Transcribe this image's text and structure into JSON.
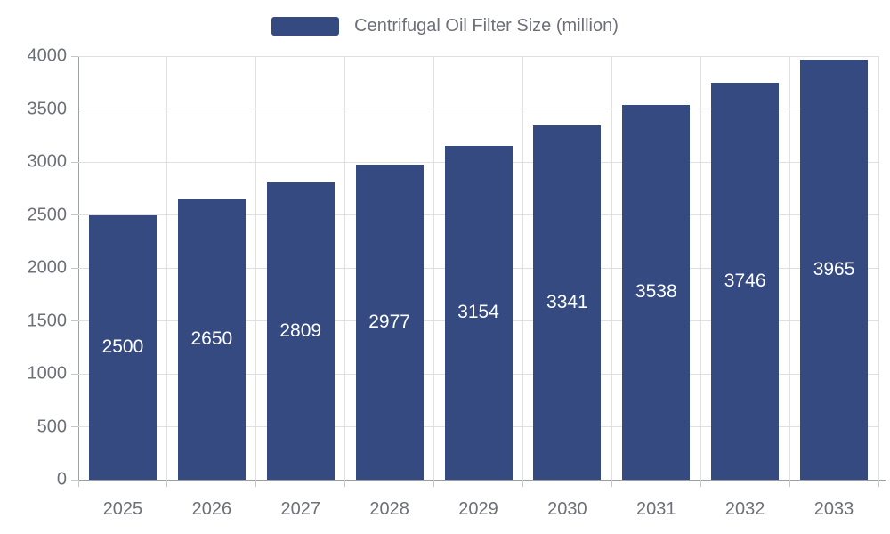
{
  "chart_data": {
    "type": "bar",
    "title": "Centrifugal Oil Filter Size (million)",
    "legend": [
      "Centrifugal Oil Filter Size (million)"
    ],
    "legend_position": "top-center",
    "categories": [
      "2025",
      "2026",
      "2027",
      "2028",
      "2029",
      "2030",
      "2031",
      "2032",
      "2033"
    ],
    "series": [
      {
        "name": "Centrifugal Oil Filter Size (million)",
        "values": [
          2500,
          2650,
          2809,
          2977,
          3154,
          3341,
          3538,
          3746,
          3965
        ]
      }
    ],
    "xlabel": "",
    "ylabel": "",
    "ylim": [
      0,
      4000
    ],
    "yticks": [
      0,
      500,
      1000,
      1500,
      2000,
      2500,
      3000,
      3500,
      4000
    ],
    "grid": true,
    "bar_labels_inside": true
  },
  "colors": {
    "bar": "#364a82",
    "bar_label": "#ffffff",
    "axis_label": "#6e7079",
    "grid_line": "#e0e0e0",
    "axis_line": "#9aa0a6",
    "tick": "#c3c7cc",
    "background": "#ffffff"
  }
}
